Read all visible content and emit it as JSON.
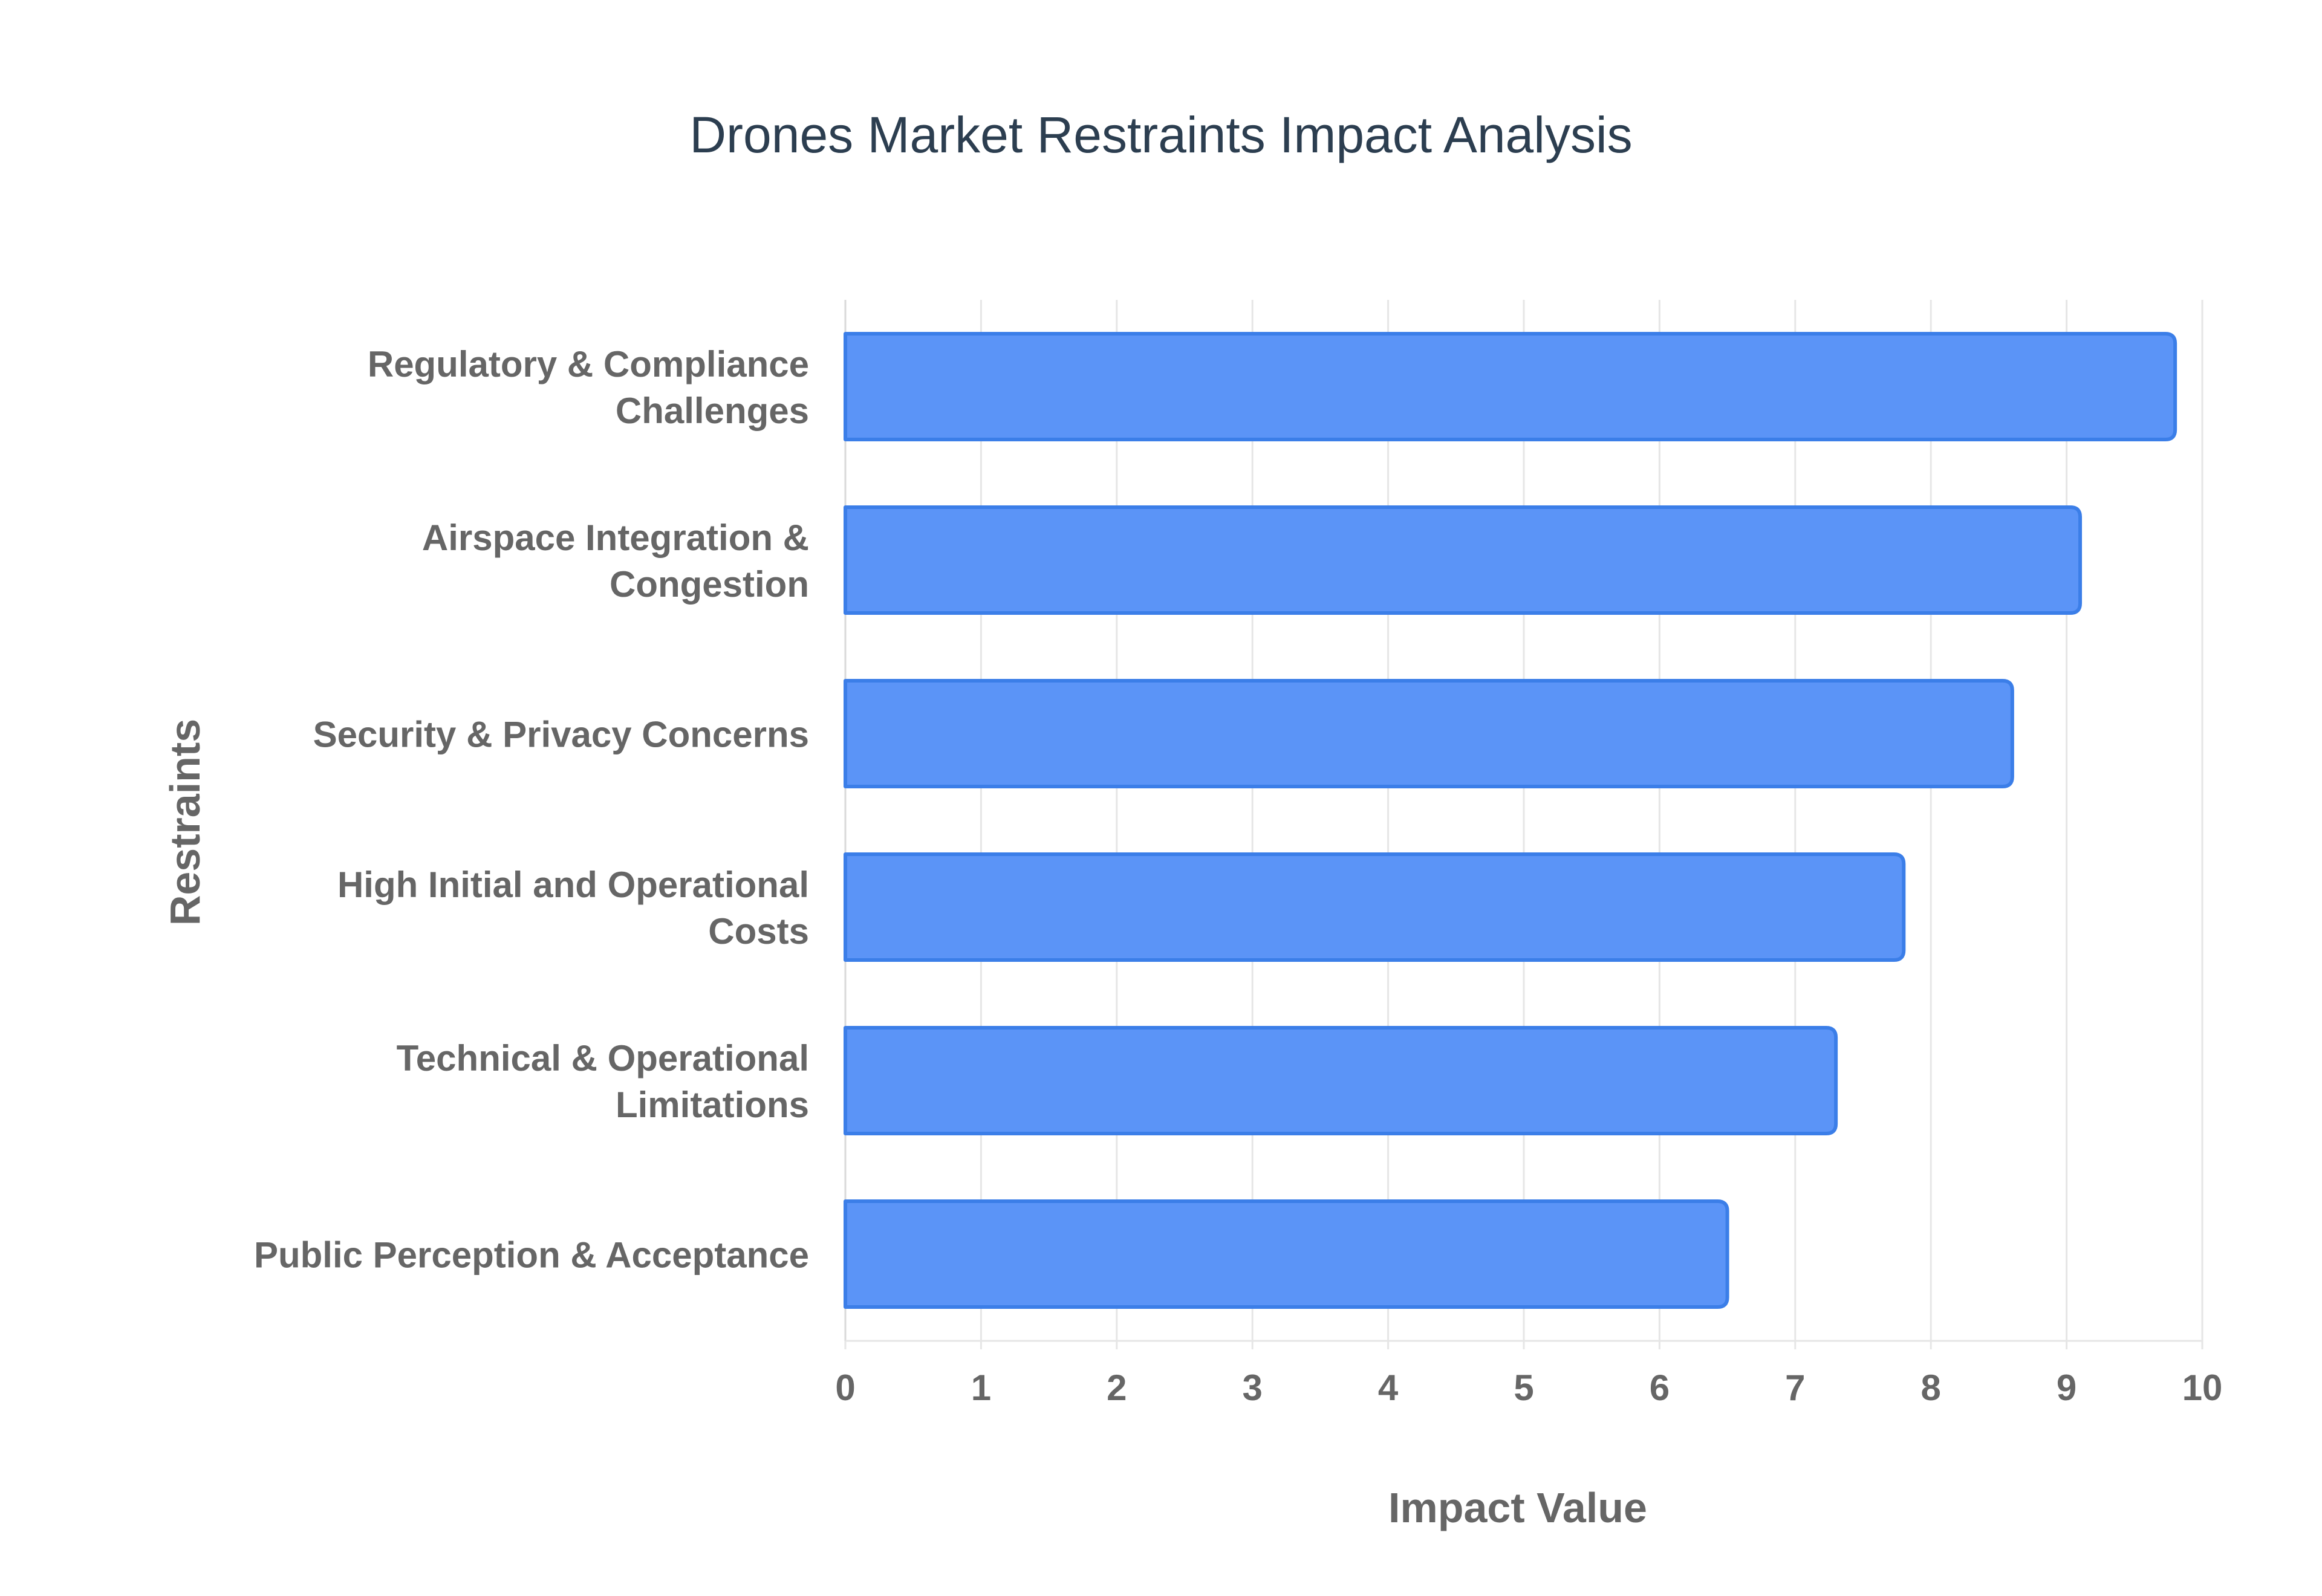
{
  "chart_data": {
    "type": "bar",
    "orientation": "horizontal",
    "title": "Drones Market Restraints Impact Analysis",
    "xlabel": "Impact Value",
    "ylabel": "Restraints",
    "xlim": [
      0,
      10
    ],
    "x_ticks": [
      "0",
      "1",
      "2",
      "3",
      "4",
      "5",
      "6",
      "7",
      "8",
      "9",
      "10"
    ],
    "grid": true,
    "categories": [
      [
        "Regulatory & Compliance",
        "Challenges"
      ],
      [
        "Airspace Integration &",
        "Congestion"
      ],
      [
        "Security & Privacy Concerns"
      ],
      [
        "High Initial and Operational",
        "Costs"
      ],
      [
        "Technical & Operational",
        "Limitations"
      ],
      [
        "Public Perception & Acceptance"
      ]
    ],
    "values": [
      9.8,
      9.1,
      8.6,
      7.8,
      7.3,
      6.5
    ],
    "colors": {
      "bar_fill": "#5b94f7",
      "bar_stroke": "#3b7ee8",
      "grid": "#e6e6e6",
      "text": "#666666",
      "title": "#2c3e50"
    }
  }
}
